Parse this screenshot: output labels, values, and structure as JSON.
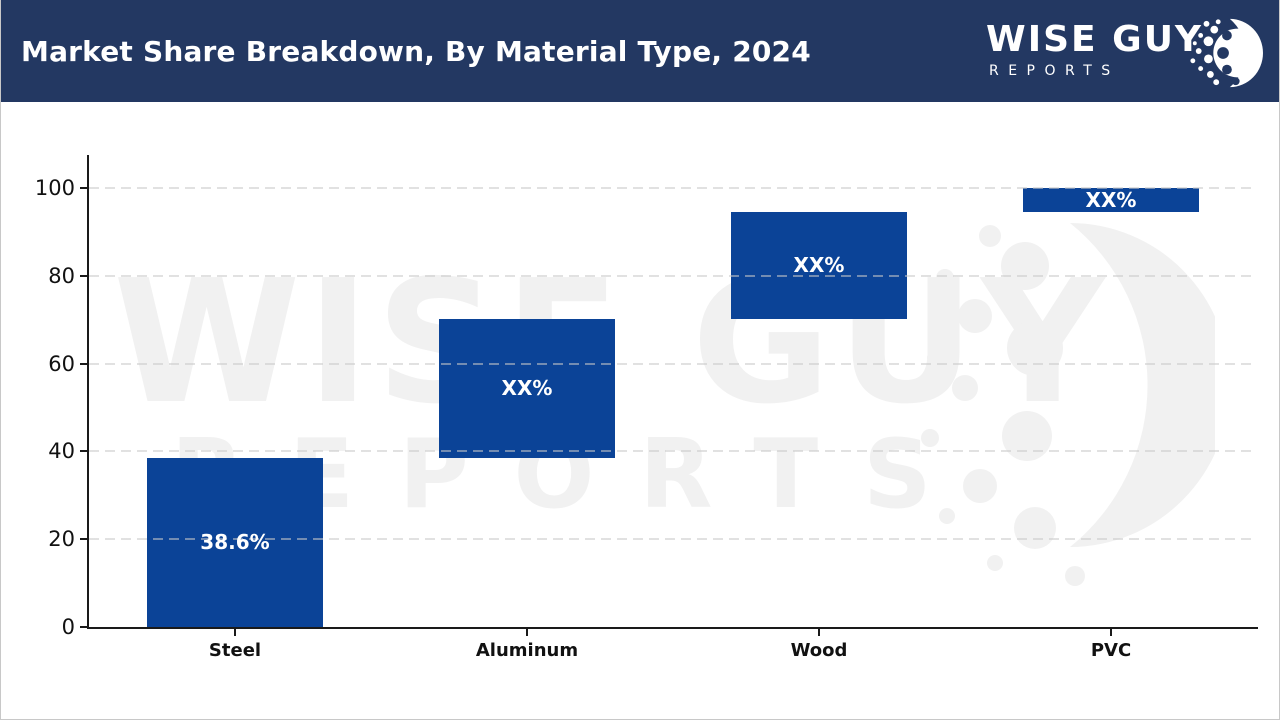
{
  "header": {
    "title": "Market Share Breakdown, By Material Type, 2024",
    "logo": {
      "line1": "WISE GUY",
      "line2": "REPORTS"
    }
  },
  "watermark": {
    "line1": "WISE GUY",
    "line2": "REPORTS"
  },
  "colors": {
    "header_bg": "#233862",
    "bar": "#0b4397",
    "bar_label": "#ffffff",
    "axis": "#1a1a1a",
    "grid": "#c9c9c9",
    "watermark": "#f1f1f1",
    "title": "#ffffff",
    "page_border": "#c8c8c8"
  },
  "chart_data": {
    "type": "bar",
    "subtype": "waterfall",
    "title": "Market Share Breakdown, By Material Type, 2024",
    "categories": [
      "Steel",
      "Aluminum",
      "Wood",
      "PVC"
    ],
    "segments": [
      {
        "category": "Steel",
        "start": 0,
        "end": 38.6,
        "label": "38.6%"
      },
      {
        "category": "Aluminum",
        "start": 38.6,
        "end": 70.2,
        "label": "XX%"
      },
      {
        "category": "Wood",
        "start": 70.2,
        "end": 94.5,
        "label": "XX%"
      },
      {
        "category": "PVC",
        "start": 94.5,
        "end": 100,
        "label": "XX%"
      }
    ],
    "xlabel": "",
    "ylabel": "",
    "ylim": [
      0,
      100
    ],
    "yticks": [
      0,
      20,
      40,
      60,
      80,
      100
    ],
    "grid": "horizontal dashed, drawn over bars",
    "legend": "none",
    "bar_color": "#0b4397",
    "bar_label_color": "#ffffff"
  }
}
